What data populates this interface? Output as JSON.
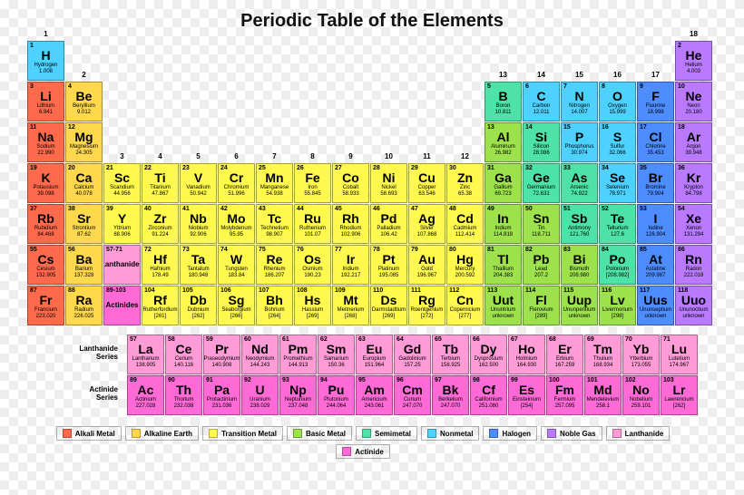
{
  "title": "Periodic Table of the Elements",
  "group_labels": [
    1,
    2,
    3,
    4,
    5,
    6,
    7,
    8,
    9,
    10,
    11,
    12,
    13,
    14,
    15,
    16,
    17,
    18
  ],
  "fblock_labels": {
    "lan": "Lanthanide Series",
    "act": "Actinide Series"
  },
  "categories": {
    "alkali": {
      "label": "Alkali Metal",
      "color": "#ff6a4d"
    },
    "alkaline": {
      "label": "Alkaline Earth",
      "color": "#ffd84d"
    },
    "transition": {
      "label": "Transition Metal",
      "color": "#fff94d"
    },
    "basic": {
      "label": "Basic Metal",
      "color": "#9de24d"
    },
    "semimetal": {
      "label": "Semimetal",
      "color": "#4de2a8"
    },
    "nonmetal": {
      "label": "Nonmetal",
      "color": "#4dd2ff"
    },
    "halogen": {
      "label": "Halogen",
      "color": "#4d8dff"
    },
    "noble": {
      "label": "Noble Gas",
      "color": "#b97aff"
    },
    "lanthanide": {
      "label": "Lanthanide",
      "color": "#ff9bd6"
    },
    "actinide": {
      "label": "Actinide",
      "color": "#ff6ad6"
    }
  },
  "elements": [
    {
      "n": 1,
      "s": "H",
      "name": "Hydrogen",
      "m": "1.008",
      "c": "nonmetal",
      "r": 1,
      "col": 1
    },
    {
      "n": 2,
      "s": "He",
      "name": "Helium",
      "m": "4.003",
      "c": "noble",
      "r": 1,
      "col": 18
    },
    {
      "n": 3,
      "s": "Li",
      "name": "Lithium",
      "m": "6.941",
      "c": "alkali",
      "r": 2,
      "col": 1
    },
    {
      "n": 4,
      "s": "Be",
      "name": "Beryllium",
      "m": "9.012",
      "c": "alkaline",
      "r": 2,
      "col": 2
    },
    {
      "n": 5,
      "s": "B",
      "name": "Boron",
      "m": "10.811",
      "c": "semimetal",
      "r": 2,
      "col": 13
    },
    {
      "n": 6,
      "s": "C",
      "name": "Carbon",
      "m": "12.011",
      "c": "nonmetal",
      "r": 2,
      "col": 14
    },
    {
      "n": 7,
      "s": "N",
      "name": "Nitrogen",
      "m": "14.007",
      "c": "nonmetal",
      "r": 2,
      "col": 15
    },
    {
      "n": 8,
      "s": "O",
      "name": "Oxygen",
      "m": "15.999",
      "c": "nonmetal",
      "r": 2,
      "col": 16
    },
    {
      "n": 9,
      "s": "F",
      "name": "Fluorine",
      "m": "18.998",
      "c": "halogen",
      "r": 2,
      "col": 17
    },
    {
      "n": 10,
      "s": "Ne",
      "name": "Neon",
      "m": "20.180",
      "c": "noble",
      "r": 2,
      "col": 18
    },
    {
      "n": 11,
      "s": "Na",
      "name": "Sodium",
      "m": "22.990",
      "c": "alkali",
      "r": 3,
      "col": 1
    },
    {
      "n": 12,
      "s": "Mg",
      "name": "Magnesium",
      "m": "24.305",
      "c": "alkaline",
      "r": 3,
      "col": 2
    },
    {
      "n": 13,
      "s": "Al",
      "name": "Aluminum",
      "m": "26.982",
      "c": "basic",
      "r": 3,
      "col": 13
    },
    {
      "n": 14,
      "s": "Si",
      "name": "Silicon",
      "m": "28.086",
      "c": "semimetal",
      "r": 3,
      "col": 14
    },
    {
      "n": 15,
      "s": "P",
      "name": "Phosphorus",
      "m": "30.974",
      "c": "nonmetal",
      "r": 3,
      "col": 15
    },
    {
      "n": 16,
      "s": "S",
      "name": "Sulfur",
      "m": "32.066",
      "c": "nonmetal",
      "r": 3,
      "col": 16
    },
    {
      "n": 17,
      "s": "Cl",
      "name": "Chlorine",
      "m": "35.453",
      "c": "halogen",
      "r": 3,
      "col": 17
    },
    {
      "n": 18,
      "s": "Ar",
      "name": "Argon",
      "m": "39.948",
      "c": "noble",
      "r": 3,
      "col": 18
    },
    {
      "n": 19,
      "s": "K",
      "name": "Potassium",
      "m": "39.098",
      "c": "alkali",
      "r": 4,
      "col": 1
    },
    {
      "n": 20,
      "s": "Ca",
      "name": "Calcium",
      "m": "40.078",
      "c": "alkaline",
      "r": 4,
      "col": 2
    },
    {
      "n": 21,
      "s": "Sc",
      "name": "Scandium",
      "m": "44.956",
      "c": "transition",
      "r": 4,
      "col": 3
    },
    {
      "n": 22,
      "s": "Ti",
      "name": "Titanium",
      "m": "47.867",
      "c": "transition",
      "r": 4,
      "col": 4
    },
    {
      "n": 23,
      "s": "V",
      "name": "Vanadium",
      "m": "50.942",
      "c": "transition",
      "r": 4,
      "col": 5
    },
    {
      "n": 24,
      "s": "Cr",
      "name": "Chromium",
      "m": "51.996",
      "c": "transition",
      "r": 4,
      "col": 6
    },
    {
      "n": 25,
      "s": "Mn",
      "name": "Manganese",
      "m": "54.938",
      "c": "transition",
      "r": 4,
      "col": 7
    },
    {
      "n": 26,
      "s": "Fe",
      "name": "Iron",
      "m": "55.845",
      "c": "transition",
      "r": 4,
      "col": 8
    },
    {
      "n": 27,
      "s": "Co",
      "name": "Cobalt",
      "m": "58.933",
      "c": "transition",
      "r": 4,
      "col": 9
    },
    {
      "n": 28,
      "s": "Ni",
      "name": "Nickel",
      "m": "58.693",
      "c": "transition",
      "r": 4,
      "col": 10
    },
    {
      "n": 29,
      "s": "Cu",
      "name": "Copper",
      "m": "63.546",
      "c": "transition",
      "r": 4,
      "col": 11
    },
    {
      "n": 30,
      "s": "Zn",
      "name": "Zinc",
      "m": "65.38",
      "c": "transition",
      "r": 4,
      "col": 12
    },
    {
      "n": 31,
      "s": "Ga",
      "name": "Gallium",
      "m": "69.723",
      "c": "basic",
      "r": 4,
      "col": 13
    },
    {
      "n": 32,
      "s": "Ge",
      "name": "Germanium",
      "m": "72.631",
      "c": "semimetal",
      "r": 4,
      "col": 14
    },
    {
      "n": 33,
      "s": "As",
      "name": "Arsenic",
      "m": "74.922",
      "c": "semimetal",
      "r": 4,
      "col": 15
    },
    {
      "n": 34,
      "s": "Se",
      "name": "Selenium",
      "m": "78.971",
      "c": "nonmetal",
      "r": 4,
      "col": 16
    },
    {
      "n": 35,
      "s": "Br",
      "name": "Bromine",
      "m": "79.904",
      "c": "halogen",
      "r": 4,
      "col": 17
    },
    {
      "n": 36,
      "s": "Kr",
      "name": "Krypton",
      "m": "84.798",
      "c": "noble",
      "r": 4,
      "col": 18
    },
    {
      "n": 37,
      "s": "Rb",
      "name": "Rubidium",
      "m": "84.468",
      "c": "alkali",
      "r": 5,
      "col": 1
    },
    {
      "n": 38,
      "s": "Sr",
      "name": "Strontium",
      "m": "87.62",
      "c": "alkaline",
      "r": 5,
      "col": 2
    },
    {
      "n": 39,
      "s": "Y",
      "name": "Yttrium",
      "m": "88.906",
      "c": "transition",
      "r": 5,
      "col": 3
    },
    {
      "n": 40,
      "s": "Zr",
      "name": "Zirconium",
      "m": "91.224",
      "c": "transition",
      "r": 5,
      "col": 4
    },
    {
      "n": 41,
      "s": "Nb",
      "name": "Niobium",
      "m": "92.906",
      "c": "transition",
      "r": 5,
      "col": 5
    },
    {
      "n": 42,
      "s": "Mo",
      "name": "Molybdenum",
      "m": "95.95",
      "c": "transition",
      "r": 5,
      "col": 6
    },
    {
      "n": 43,
      "s": "Tc",
      "name": "Technetium",
      "m": "98.907",
      "c": "transition",
      "r": 5,
      "col": 7
    },
    {
      "n": 44,
      "s": "Ru",
      "name": "Ruthenium",
      "m": "101.07",
      "c": "transition",
      "r": 5,
      "col": 8
    },
    {
      "n": 45,
      "s": "Rh",
      "name": "Rhodium",
      "m": "102.906",
      "c": "transition",
      "r": 5,
      "col": 9
    },
    {
      "n": 46,
      "s": "Pd",
      "name": "Palladium",
      "m": "106.42",
      "c": "transition",
      "r": 5,
      "col": 10
    },
    {
      "n": 47,
      "s": "Ag",
      "name": "Silver",
      "m": "107.868",
      "c": "transition",
      "r": 5,
      "col": 11
    },
    {
      "n": 48,
      "s": "Cd",
      "name": "Cadmium",
      "m": "112.414",
      "c": "transition",
      "r": 5,
      "col": 12
    },
    {
      "n": 49,
      "s": "In",
      "name": "Indium",
      "m": "114.818",
      "c": "basic",
      "r": 5,
      "col": 13
    },
    {
      "n": 50,
      "s": "Sn",
      "name": "Tin",
      "m": "118.711",
      "c": "basic",
      "r": 5,
      "col": 14
    },
    {
      "n": 51,
      "s": "Sb",
      "name": "Antimony",
      "m": "121.760",
      "c": "semimetal",
      "r": 5,
      "col": 15
    },
    {
      "n": 52,
      "s": "Te",
      "name": "Tellurium",
      "m": "127.6",
      "c": "semimetal",
      "r": 5,
      "col": 16
    },
    {
      "n": 53,
      "s": "I",
      "name": "Iodine",
      "m": "126.904",
      "c": "halogen",
      "r": 5,
      "col": 17
    },
    {
      "n": 54,
      "s": "Xe",
      "name": "Xenon",
      "m": "131.294",
      "c": "noble",
      "r": 5,
      "col": 18
    },
    {
      "n": 55,
      "s": "Cs",
      "name": "Cesium",
      "m": "132.905",
      "c": "alkali",
      "r": 6,
      "col": 1
    },
    {
      "n": 56,
      "s": "Ba",
      "name": "Barium",
      "m": "137.328",
      "c": "alkaline",
      "r": 6,
      "col": 2
    },
    {
      "n": "57-71",
      "s": "",
      "name": "Lanthanides",
      "m": "",
      "c": "lanthanide",
      "r": 6,
      "col": 3,
      "placeholder": true
    },
    {
      "n": 72,
      "s": "Hf",
      "name": "Hafnium",
      "m": "178.49",
      "c": "transition",
      "r": 6,
      "col": 4
    },
    {
      "n": 73,
      "s": "Ta",
      "name": "Tantalum",
      "m": "180.948",
      "c": "transition",
      "r": 6,
      "col": 5
    },
    {
      "n": 74,
      "s": "W",
      "name": "Tungsten",
      "m": "183.84",
      "c": "transition",
      "r": 6,
      "col": 6
    },
    {
      "n": 75,
      "s": "Re",
      "name": "Rhenium",
      "m": "186.207",
      "c": "transition",
      "r": 6,
      "col": 7
    },
    {
      "n": 76,
      "s": "Os",
      "name": "Osmium",
      "m": "190.23",
      "c": "transition",
      "r": 6,
      "col": 8
    },
    {
      "n": 77,
      "s": "Ir",
      "name": "Iridium",
      "m": "192.217",
      "c": "transition",
      "r": 6,
      "col": 9
    },
    {
      "n": 78,
      "s": "Pt",
      "name": "Platinum",
      "m": "195.085",
      "c": "transition",
      "r": 6,
      "col": 10
    },
    {
      "n": 79,
      "s": "Au",
      "name": "Gold",
      "m": "196.967",
      "c": "transition",
      "r": 6,
      "col": 11
    },
    {
      "n": 80,
      "s": "Hg",
      "name": "Mercury",
      "m": "200.592",
      "c": "transition",
      "r": 6,
      "col": 12
    },
    {
      "n": 81,
      "s": "Tl",
      "name": "Thallium",
      "m": "204.383",
      "c": "basic",
      "r": 6,
      "col": 13
    },
    {
      "n": 82,
      "s": "Pb",
      "name": "Lead",
      "m": "207.2",
      "c": "basic",
      "r": 6,
      "col": 14
    },
    {
      "n": 83,
      "s": "Bi",
      "name": "Bismuth",
      "m": "208.980",
      "c": "basic",
      "r": 6,
      "col": 15
    },
    {
      "n": 84,
      "s": "Po",
      "name": "Polonium",
      "m": "[208.982]",
      "c": "semimetal",
      "r": 6,
      "col": 16
    },
    {
      "n": 85,
      "s": "At",
      "name": "Astatine",
      "m": "209.987",
      "c": "halogen",
      "r": 6,
      "col": 17
    },
    {
      "n": 86,
      "s": "Rn",
      "name": "Radon",
      "m": "222.018",
      "c": "noble",
      "r": 6,
      "col": 18
    },
    {
      "n": 87,
      "s": "Fr",
      "name": "Francium",
      "m": "223.020",
      "c": "alkali",
      "r": 7,
      "col": 1
    },
    {
      "n": 88,
      "s": "Ra",
      "name": "Radium",
      "m": "226.025",
      "c": "alkaline",
      "r": 7,
      "col": 2
    },
    {
      "n": "89-103",
      "s": "",
      "name": "Actinides",
      "m": "",
      "c": "actinide",
      "r": 7,
      "col": 3,
      "placeholder": true
    },
    {
      "n": 104,
      "s": "Rf",
      "name": "Rutherfordium",
      "m": "[261]",
      "c": "transition",
      "r": 7,
      "col": 4
    },
    {
      "n": 105,
      "s": "Db",
      "name": "Dubnium",
      "m": "[262]",
      "c": "transition",
      "r": 7,
      "col": 5
    },
    {
      "n": 106,
      "s": "Sg",
      "name": "Seaborgium",
      "m": "[266]",
      "c": "transition",
      "r": 7,
      "col": 6
    },
    {
      "n": 107,
      "s": "Bh",
      "name": "Bohrium",
      "m": "[264]",
      "c": "transition",
      "r": 7,
      "col": 7
    },
    {
      "n": 108,
      "s": "Hs",
      "name": "Hassium",
      "m": "[269]",
      "c": "transition",
      "r": 7,
      "col": 8
    },
    {
      "n": 109,
      "s": "Mt",
      "name": "Meitnerium",
      "m": "[268]",
      "c": "transition",
      "r": 7,
      "col": 9
    },
    {
      "n": 110,
      "s": "Ds",
      "name": "Darmstadtium",
      "m": "[269]",
      "c": "transition",
      "r": 7,
      "col": 10
    },
    {
      "n": 111,
      "s": "Rg",
      "name": "Roentgenium",
      "m": "[272]",
      "c": "transition",
      "r": 7,
      "col": 11
    },
    {
      "n": 112,
      "s": "Cn",
      "name": "Copernicium",
      "m": "[277]",
      "c": "transition",
      "r": 7,
      "col": 12
    },
    {
      "n": 113,
      "s": "Uut",
      "name": "Ununtrium",
      "m": "unknown",
      "c": "basic",
      "r": 7,
      "col": 13
    },
    {
      "n": 114,
      "s": "Fl",
      "name": "Flerovium",
      "m": "[289]",
      "c": "basic",
      "r": 7,
      "col": 14
    },
    {
      "n": 115,
      "s": "Uup",
      "name": "Ununpentium",
      "m": "unknown",
      "c": "basic",
      "r": 7,
      "col": 15
    },
    {
      "n": 116,
      "s": "Lv",
      "name": "Livermorium",
      "m": "[298]",
      "c": "basic",
      "r": 7,
      "col": 16
    },
    {
      "n": 117,
      "s": "Uus",
      "name": "Ununseptium",
      "m": "unknown",
      "c": "halogen",
      "r": 7,
      "col": 17
    },
    {
      "n": 118,
      "s": "Uuo",
      "name": "Ununoctium",
      "m": "unknown",
      "c": "noble",
      "r": 7,
      "col": 18
    }
  ],
  "lanthanides": [
    {
      "n": 57,
      "s": "La",
      "name": "Lanthanum",
      "m": "138.905",
      "c": "lanthanide"
    },
    {
      "n": 58,
      "s": "Ce",
      "name": "Cerium",
      "m": "140.116",
      "c": "lanthanide"
    },
    {
      "n": 59,
      "s": "Pr",
      "name": "Praseodymium",
      "m": "140.908",
      "c": "lanthanide"
    },
    {
      "n": 60,
      "s": "Nd",
      "name": "Neodymium",
      "m": "144.243",
      "c": "lanthanide"
    },
    {
      "n": 61,
      "s": "Pm",
      "name": "Promethium",
      "m": "144.913",
      "c": "lanthanide"
    },
    {
      "n": 62,
      "s": "Sm",
      "name": "Samarium",
      "m": "150.36",
      "c": "lanthanide"
    },
    {
      "n": 63,
      "s": "Eu",
      "name": "Europium",
      "m": "151.964",
      "c": "lanthanide"
    },
    {
      "n": 64,
      "s": "Gd",
      "name": "Gadolinium",
      "m": "157.25",
      "c": "lanthanide"
    },
    {
      "n": 65,
      "s": "Tb",
      "name": "Terbium",
      "m": "158.925",
      "c": "lanthanide"
    },
    {
      "n": 66,
      "s": "Dy",
      "name": "Dysprosium",
      "m": "162.500",
      "c": "lanthanide"
    },
    {
      "n": 67,
      "s": "Ho",
      "name": "Holmium",
      "m": "164.930",
      "c": "lanthanide"
    },
    {
      "n": 68,
      "s": "Er",
      "name": "Erbium",
      "m": "167.259",
      "c": "lanthanide"
    },
    {
      "n": 69,
      "s": "Tm",
      "name": "Thulium",
      "m": "168.934",
      "c": "lanthanide"
    },
    {
      "n": 70,
      "s": "Yb",
      "name": "Ytterbium",
      "m": "173.055",
      "c": "lanthanide"
    },
    {
      "n": 71,
      "s": "Lu",
      "name": "Lutetium",
      "m": "174.967",
      "c": "lanthanide"
    }
  ],
  "actinides": [
    {
      "n": 89,
      "s": "Ac",
      "name": "Actinium",
      "m": "227.028",
      "c": "actinide"
    },
    {
      "n": 90,
      "s": "Th",
      "name": "Thorium",
      "m": "232.038",
      "c": "actinide"
    },
    {
      "n": 91,
      "s": "Pa",
      "name": "Protactinium",
      "m": "231.036",
      "c": "actinide"
    },
    {
      "n": 92,
      "s": "U",
      "name": "Uranium",
      "m": "238.029",
      "c": "actinide"
    },
    {
      "n": 93,
      "s": "Np",
      "name": "Neptunium",
      "m": "237.048",
      "c": "actinide"
    },
    {
      "n": 94,
      "s": "Pu",
      "name": "Plutonium",
      "m": "244.064",
      "c": "actinide"
    },
    {
      "n": 95,
      "s": "Am",
      "name": "Americium",
      "m": "243.061",
      "c": "actinide"
    },
    {
      "n": 96,
      "s": "Cm",
      "name": "Curium",
      "m": "247.070",
      "c": "actinide"
    },
    {
      "n": 97,
      "s": "Bk",
      "name": "Berkelium",
      "m": "247.070",
      "c": "actinide"
    },
    {
      "n": 98,
      "s": "Cf",
      "name": "Californium",
      "m": "251.080",
      "c": "actinide"
    },
    {
      "n": 99,
      "s": "Es",
      "name": "Einsteinium",
      "m": "[254]",
      "c": "actinide"
    },
    {
      "n": 100,
      "s": "Fm",
      "name": "Fermium",
      "m": "257.095",
      "c": "actinide"
    },
    {
      "n": 101,
      "s": "Md",
      "name": "Mendelevium",
      "m": "258.1",
      "c": "actinide"
    },
    {
      "n": 102,
      "s": "No",
      "name": "Nobelium",
      "m": "259.101",
      "c": "actinide"
    },
    {
      "n": 103,
      "s": "Lr",
      "name": "Lawrencium",
      "m": "[262]",
      "c": "actinide"
    }
  ]
}
